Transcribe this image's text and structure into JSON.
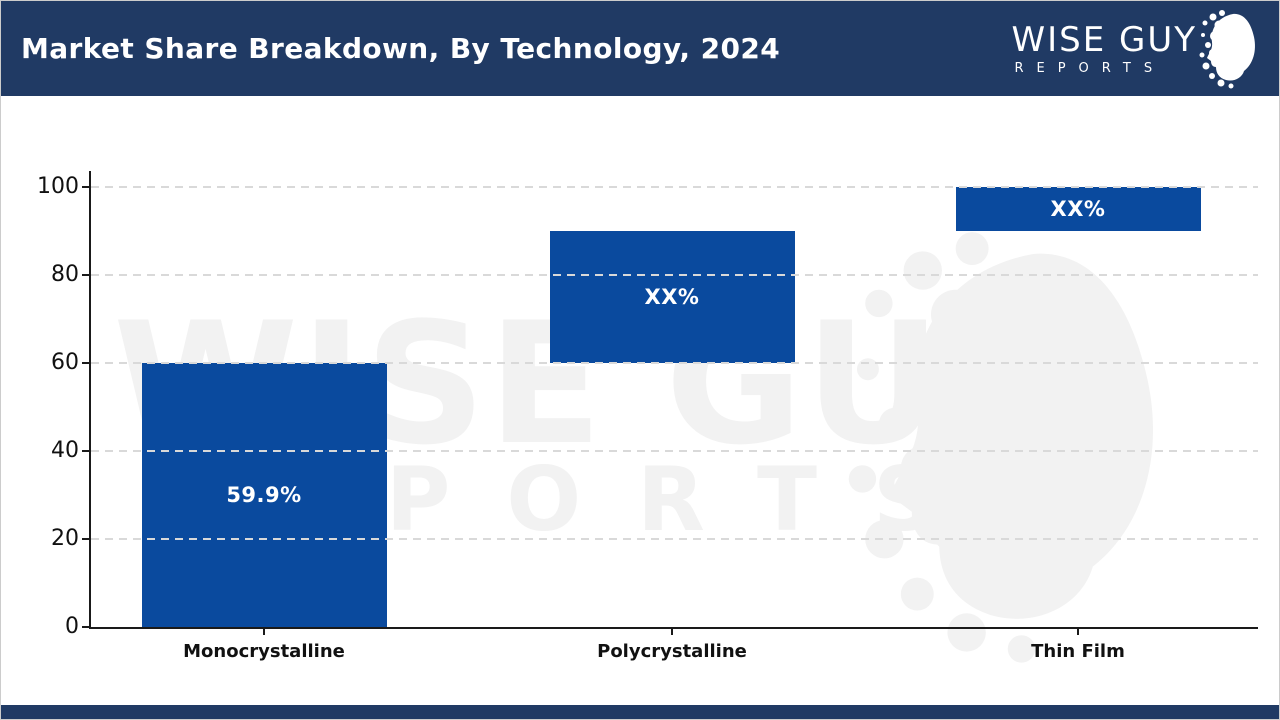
{
  "header": {
    "title": "Market Share Breakdown, By Technology, 2024",
    "bg_color": "#203a64",
    "logo": {
      "line1": "WISE GUY",
      "line2": "REPORTS"
    }
  },
  "watermark": {
    "line1": "WISE GUY",
    "line2": "REPORTS"
  },
  "chart_data": {
    "type": "bar",
    "subtype": "waterfall-stacked-share",
    "title": "Market Share Breakdown, By Technology, 2024",
    "categories": [
      "Monocrystalline",
      "Polycrystalline",
      "Thin Film"
    ],
    "segments": [
      {
        "category": "Monocrystalline",
        "start": 0,
        "end": 59.9,
        "label": "59.9%"
      },
      {
        "category": "Polycrystalline",
        "start": 59.9,
        "end": 89.9,
        "label": "XX%"
      },
      {
        "category": "Thin Film",
        "start": 89.9,
        "end": 100,
        "label": "XX%"
      }
    ],
    "xlabel": "",
    "ylabel": "",
    "yticks": [
      0,
      20,
      40,
      60,
      80,
      100
    ],
    "ylim": [
      0,
      105
    ],
    "grid": "dashed-horizontal",
    "legend": "none",
    "bar_color": "#0a4a9e",
    "bar_label_color": "#ffffff",
    "axis_color": "#1a1a1a",
    "grid_color": "#d9d9d9"
  },
  "footer": {
    "bg_color": "#203a64"
  }
}
